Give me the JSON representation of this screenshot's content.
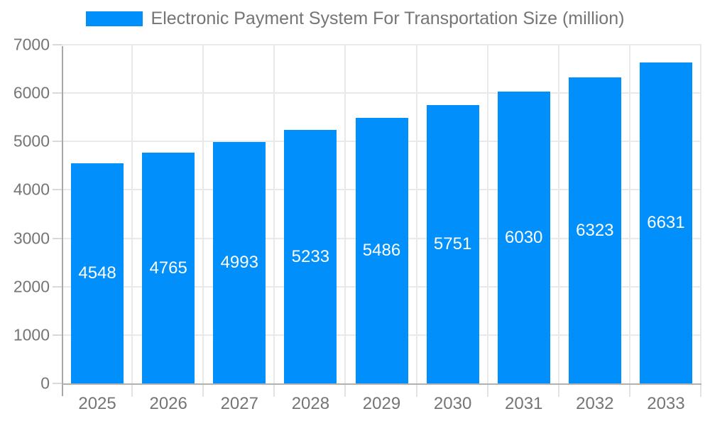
{
  "chart_data": {
    "type": "bar",
    "title": "Electronic Payment System For Transportation Size (million)",
    "categories": [
      "2025",
      "2026",
      "2027",
      "2028",
      "2029",
      "2030",
      "2031",
      "2032",
      "2033"
    ],
    "values": [
      4548,
      4765,
      4993,
      5233,
      5486,
      5751,
      6030,
      6323,
      6631
    ],
    "series": [
      {
        "name": "Electronic Payment System For Transportation Size (million)",
        "values": [
          4548,
          4765,
          4993,
          5233,
          5486,
          5751,
          6030,
          6323,
          6631
        ]
      }
    ],
    "xlabel": "",
    "ylabel": "",
    "ylim": [
      0,
      7000
    ],
    "ytick_step": 1000,
    "grid": true,
    "legend_position": "top",
    "data_labels": "inside-center",
    "colors": {
      "bar": "#008FFB",
      "data_label_text": "#ffffff",
      "axis_label_text": "#757575",
      "gridline": "#e9e9e9",
      "axis_line": "#b1b1b1",
      "background": "#ffffff"
    }
  }
}
